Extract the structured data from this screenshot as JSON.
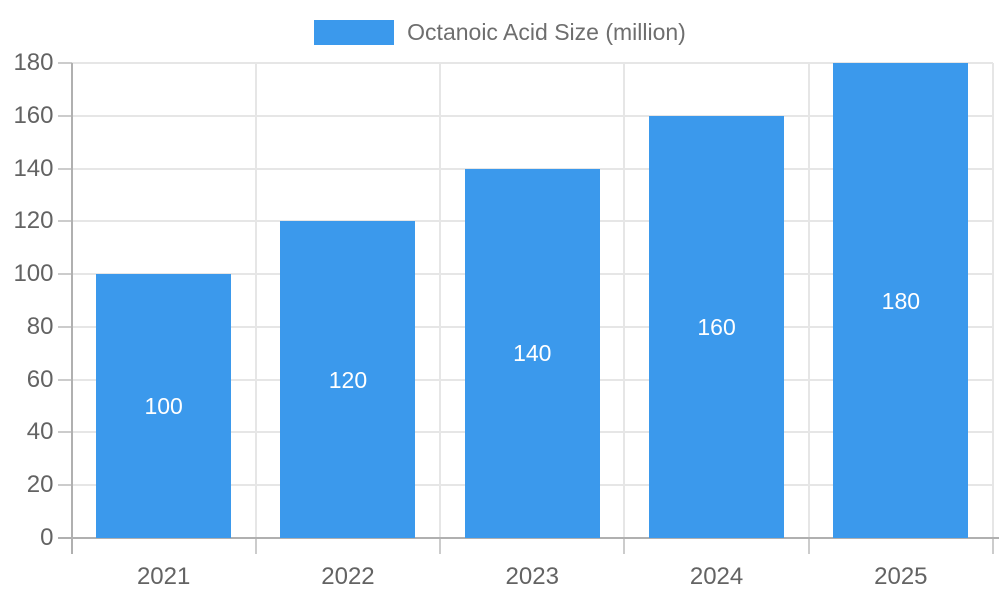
{
  "legend": {
    "label": "Octanoic Acid Size (million)",
    "swatch_color": "#3b99ec"
  },
  "chart_data": {
    "type": "bar",
    "title": "",
    "xlabel": "",
    "ylabel": "",
    "categories": [
      "2021",
      "2022",
      "2023",
      "2024",
      "2025"
    ],
    "series": [
      {
        "name": "Octanoic Acid Size (million)",
        "values": [
          100,
          120,
          140,
          160,
          180
        ]
      }
    ],
    "value_labels": [
      "100",
      "120",
      "140",
      "160",
      "180"
    ],
    "ylim": [
      0,
      180
    ],
    "ytick_step": 20,
    "yticks": [
      "0",
      "20",
      "40",
      "60",
      "80",
      "100",
      "120",
      "140",
      "160",
      "180"
    ],
    "grid": true,
    "legend_position": "top-center"
  },
  "colors": {
    "bar": "#3b99ec",
    "grid": "#e6e6e6",
    "axis": "#b0b0b0",
    "tick": "#cccccc",
    "axis_label_text": "#636363",
    "legend_text": "#6e6e6e",
    "value_label_text": "#ffffff"
  }
}
